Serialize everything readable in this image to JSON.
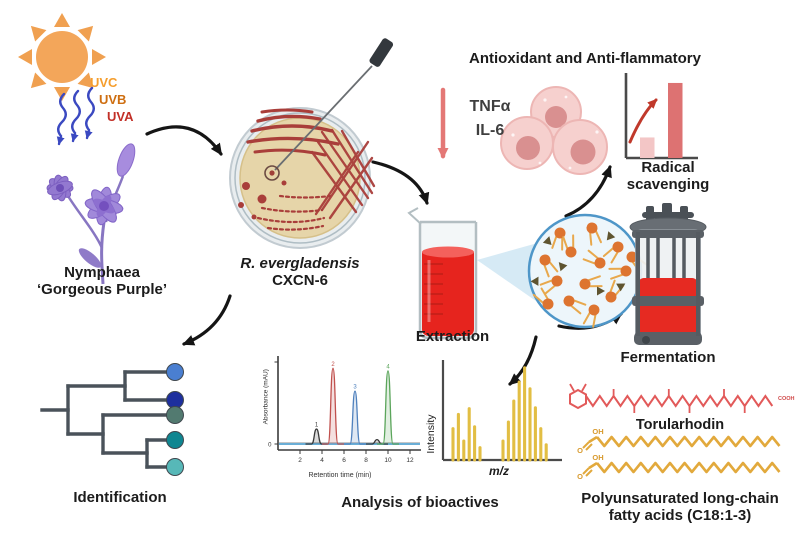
{
  "labels": {
    "uvc": "UVC",
    "uvb": "UVB",
    "uva": "UVA",
    "flower_line1": "Nymphaea",
    "flower_line2": "‘Gorgeous Purple’",
    "strain_line1": "R. evergladensis",
    "strain_line2": "CXCN-6",
    "heading": "Antioxidant and Anti-flammatory",
    "cytokine1": "TNFα",
    "cytokine2": "IL-6",
    "radical1": "Radical",
    "radical2": "scavenging",
    "extraction": "Extraction",
    "fermentation": "Fermentation",
    "identification": "Identification",
    "analysis": "Analysis of bioactives",
    "torularhodin": "Torularhodin",
    "cooh": "COOH",
    "oh": "OH",
    "o": "O",
    "fatty_line1": "Polyunsaturated long-chain",
    "fatty_line2": "fatty acids (C18:1-3)"
  },
  "colors": {
    "sun": "#f3a65a",
    "uvc_text": "#f59e2e",
    "uvb_text": "#ce6e10",
    "uva_text": "#c23028",
    "uv_wave": "#3b49c1",
    "flower": "#a189da",
    "agar": "#e6d5a9",
    "colony_red": "#a93e3a",
    "arrow_black": "#151515",
    "cytokine_arrow": "#e47876",
    "cell_fill": "#f6d0ce",
    "cell_nucleus": "#d99090",
    "beaker_liquid": "#e6241e",
    "magnifier_ring": "#4e96c8",
    "molecule_head": "#dd7430",
    "molecule_tail": "#e8a84c",
    "triangle_particle": "#5e5430",
    "fermenter_frame": "#555b61",
    "torularhodin_red": "#e25a5a",
    "fatty_gold": "#e2a93c"
  },
  "chart_data": [
    {
      "id": "identification-dendrogram",
      "type": "dendrogram",
      "title": "Identification",
      "line_color": "#4a525a",
      "leaves": [
        {
          "x": 140,
          "y": 17,
          "color": "#4a7fd1"
        },
        {
          "x": 140,
          "y": 45,
          "color": "#1d2f9e"
        },
        {
          "x": 140,
          "y": 60,
          "color": "#527a70"
        },
        {
          "x": 140,
          "y": 85,
          "color": "#0f8691"
        },
        {
          "x": 140,
          "y": 112,
          "color": "#57b8b8"
        }
      ],
      "segments": [
        [
          7,
          55,
          33,
          55
        ],
        [
          33,
          31,
          33,
          79
        ],
        [
          33,
          31,
          90,
          31
        ],
        [
          90,
          17,
          90,
          45
        ],
        [
          90,
          17,
          140,
          17
        ],
        [
          90,
          45,
          140,
          45
        ],
        [
          33,
          79,
          68,
          79
        ],
        [
          68,
          60,
          68,
          98
        ],
        [
          68,
          60,
          140,
          60
        ],
        [
          68,
          98,
          112,
          98
        ],
        [
          112,
          85,
          112,
          112
        ],
        [
          112,
          85,
          140,
          85
        ],
        [
          112,
          112,
          140,
          112
        ]
      ]
    },
    {
      "id": "hplc-chromatogram",
      "type": "line",
      "xlabel": "Retention time (min)",
      "ylabel": "Absorbance (mAU)",
      "xlim": [
        0,
        13
      ],
      "xticks": [
        2,
        4,
        6,
        8,
        10,
        12
      ],
      "ytick_zero": "0",
      "baseline_color": "#6aaed6",
      "peaks": [
        {
          "label": "1",
          "rt": 3.5,
          "height": 0.17,
          "color": "#3a3a3a"
        },
        {
          "label": "2",
          "rt": 5.0,
          "height": 0.86,
          "color": "#c0504d"
        },
        {
          "label": "3",
          "rt": 7.0,
          "height": 0.6,
          "color": "#4f81bd"
        },
        {
          "label": "",
          "rt": 9.0,
          "height": 0.05,
          "color": "#3a3a3a"
        },
        {
          "label": "4",
          "rt": 10.0,
          "height": 0.83,
          "color": "#5ba55b"
        }
      ]
    },
    {
      "id": "mass-spectrum",
      "type": "bar",
      "xlabel": "m/z",
      "ylabel": "Intensity",
      "bar_color": "#e2be44",
      "clusters": [
        {
          "x0": 10,
          "heights": [
            0.33,
            0.48,
            0.2,
            0.54,
            0.35,
            0.13
          ]
        },
        {
          "x0": 60,
          "heights": [
            0.2,
            0.4,
            0.62,
            0.82,
            0.97,
            0.75,
            0.55,
            0.33,
            0.16
          ]
        }
      ]
    },
    {
      "id": "radical-scavenging-bars",
      "type": "bar",
      "title": "Radical scavenging",
      "values": [
        0.26,
        0.95
      ],
      "colors": [
        "#f3c6c6",
        "#dd7272"
      ],
      "trend": "increase"
    }
  ]
}
